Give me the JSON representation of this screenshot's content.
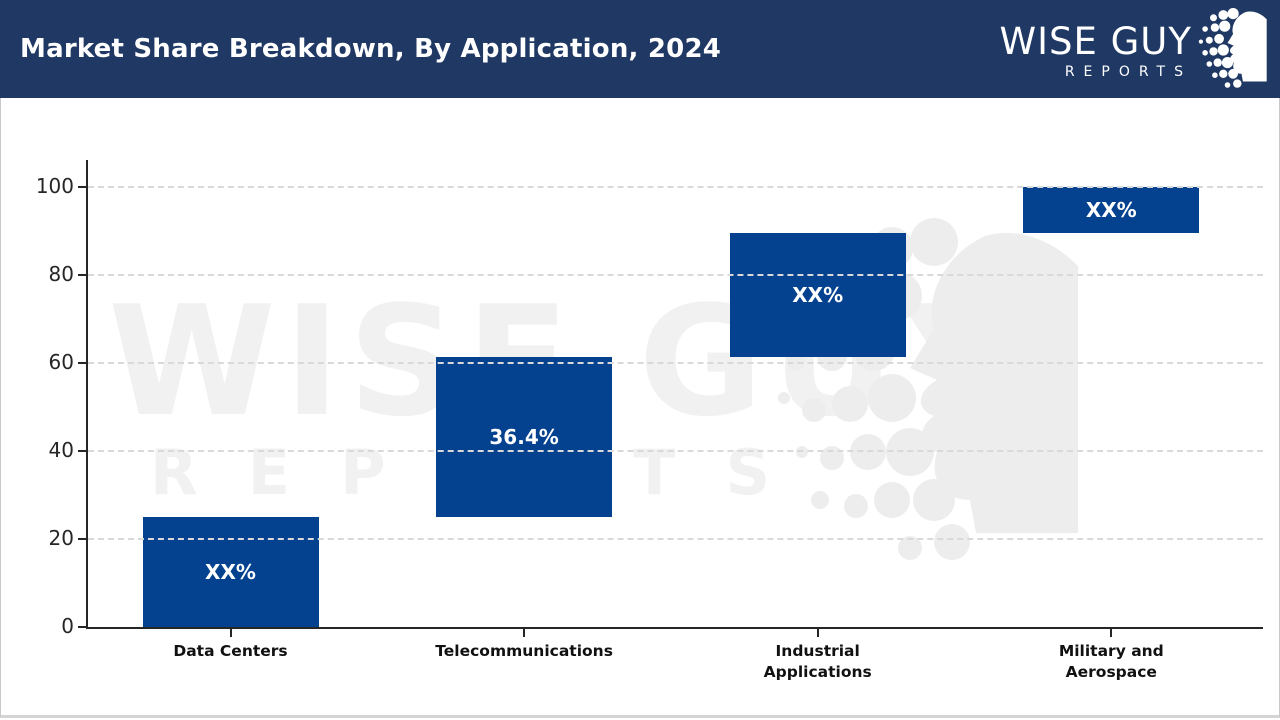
{
  "header": {
    "title": "Market Share Breakdown, By Application, 2024",
    "bg_color": "#1f3864",
    "logo": {
      "line1": "WISE GUY",
      "line2": "REPORTS"
    }
  },
  "watermark": {
    "line1": "WISE GUY",
    "line2": "REPORTS"
  },
  "chart_data": {
    "type": "bar",
    "subtype": "waterfall",
    "title": "Market Share Breakdown, By Application, 2024",
    "categories": [
      "Data Centers",
      "Telecommunications",
      "Industrial Applications",
      "Military and Aerospace"
    ],
    "tick_labels": [
      "Data Centers",
      "Telecommunications",
      "Industrial\nApplications",
      "Military and\nAerospace"
    ],
    "segments": [
      {
        "category": "Data Centers",
        "start": 0,
        "end": 25,
        "label": "XX%"
      },
      {
        "category": "Telecommunications",
        "start": 25,
        "end": 61.4,
        "label": "36.4%"
      },
      {
        "category": "Industrial Applications",
        "start": 61.4,
        "end": 89.6,
        "label": "XX%"
      },
      {
        "category": "Military and Aerospace",
        "start": 89.6,
        "end": 100,
        "label": "XX%"
      }
    ],
    "yticks": [
      "0",
      "20",
      "40",
      "60",
      "80",
      "100"
    ],
    "ylim": [
      0,
      106
    ],
    "grid": true,
    "legend": false,
    "bar_color": "#04428f",
    "grid_color": "#d9d9d9",
    "axis_color": "#262626",
    "bar_label_color": "#ffffff"
  }
}
